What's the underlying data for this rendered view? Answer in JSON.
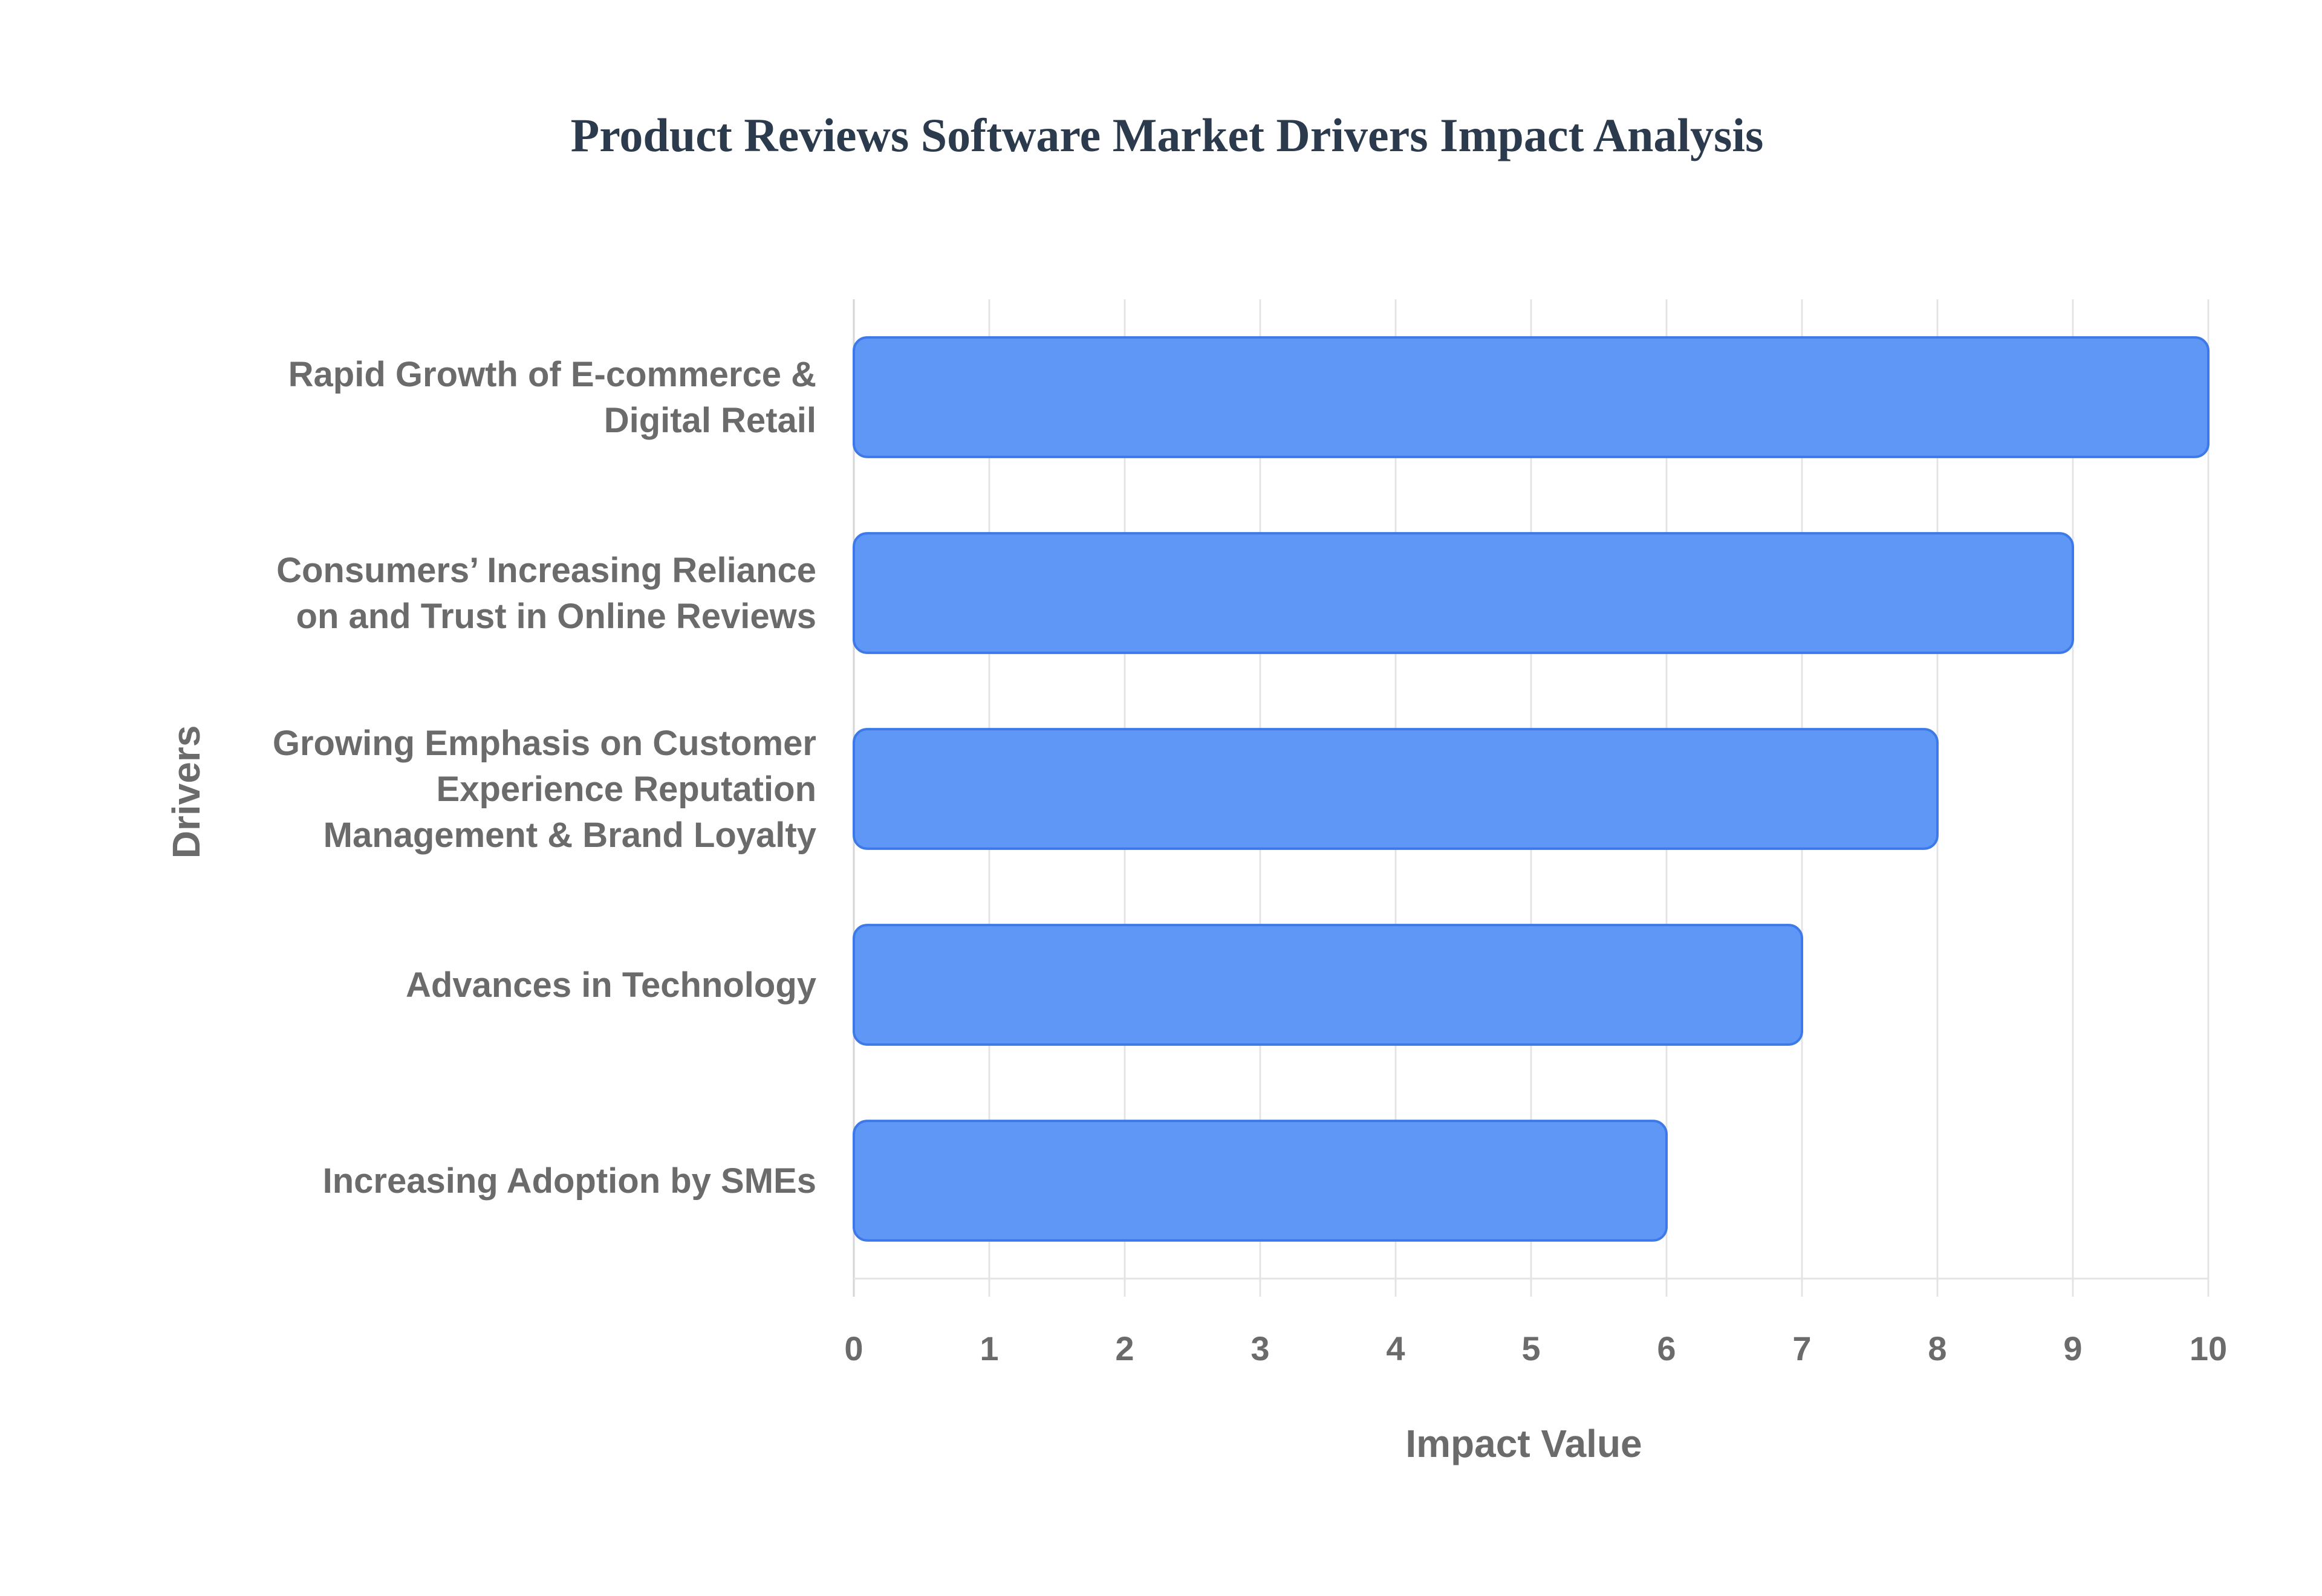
{
  "chart_data": {
    "type": "bar",
    "orientation": "horizontal",
    "title": "Product Reviews Software Market Drivers Impact Analysis",
    "xlabel": "Impact Value",
    "ylabel": "Drivers",
    "categories": [
      "Rapid Growth of E-commerce & Digital Retail",
      "Consumers’ Increasing Reliance on and Trust in Online Reviews",
      "Growing Emphasis on Customer Experience Reputation Management & Brand Loyalty",
      "Advances in Technology",
      "Increasing Adoption by SMEs"
    ],
    "category_label_lines": [
      [
        "Rapid Growth of E-commerce &",
        "Digital Retail"
      ],
      [
        "Consumers’ Increasing Reliance",
        "on and Trust in Online Reviews"
      ],
      [
        "Growing Emphasis on Customer",
        "Experience Reputation",
        "Management & Brand Loyalty"
      ],
      [
        "Advances in Technology"
      ],
      [
        "Increasing Adoption by SMEs"
      ]
    ],
    "values": [
      10,
      9,
      8,
      7,
      6
    ],
    "xlim": [
      0,
      10
    ],
    "xticks": [
      0,
      1,
      2,
      3,
      4,
      5,
      6,
      7,
      8,
      9,
      10
    ],
    "grid": true,
    "legend": "none",
    "bar_color": "#5f97f6",
    "bar_edge_color": "#3d7ae8"
  }
}
